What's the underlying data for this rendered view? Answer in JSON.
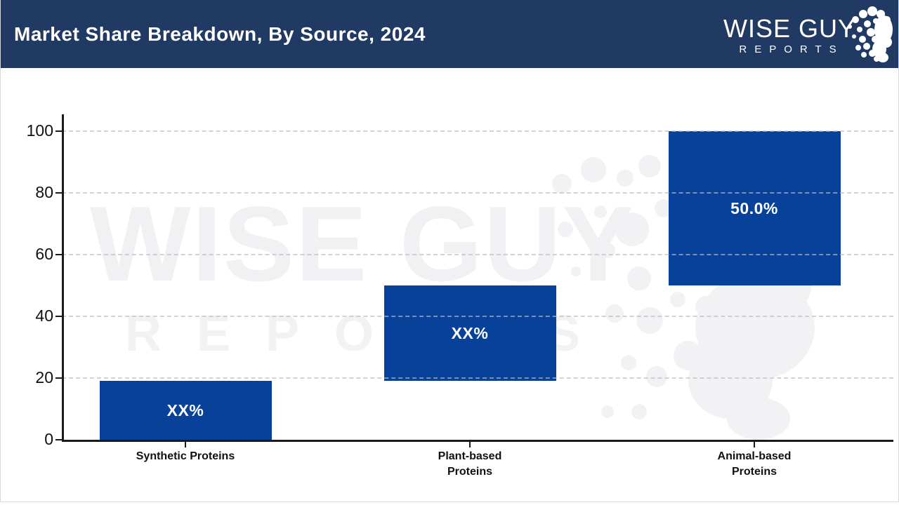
{
  "header": {
    "title": "Market Share Breakdown, By Source, 2024",
    "logo": {
      "line1": "WISE GUY",
      "line2": "REPORTS"
    }
  },
  "watermark": {
    "line1": "WISE GUY",
    "line2": "REPORTS"
  },
  "chart_data": {
    "type": "bar",
    "subtype": "waterfall",
    "title": "Market Share Breakdown, By Source, 2024",
    "categories": [
      "Synthetic Proteins",
      "Plant-based\nProteins",
      "Animal-based\nProteins"
    ],
    "bars": [
      {
        "category": "Synthetic Proteins",
        "start": 0,
        "end": 19,
        "label": "XX%"
      },
      {
        "category": "Plant-based Proteins",
        "start": 19,
        "end": 50,
        "label": "XX%"
      },
      {
        "category": "Animal-based Proteins",
        "start": 50,
        "end": 100,
        "label": "50.0%"
      }
    ],
    "xlabel": "",
    "ylabel": "",
    "ylim": [
      0,
      105
    ],
    "yticks": [
      0,
      20,
      40,
      60,
      80,
      100
    ],
    "grid": "horizontal-dashed",
    "legend": "none",
    "bar_color": "#084199"
  },
  "colors": {
    "header_bg": "#213a63",
    "bar": "#084199",
    "axis": "#1a1a1a",
    "gridline": "#d9d9d9",
    "watermark": "#f1f1f3",
    "frame_border": "#d9d9d9"
  }
}
